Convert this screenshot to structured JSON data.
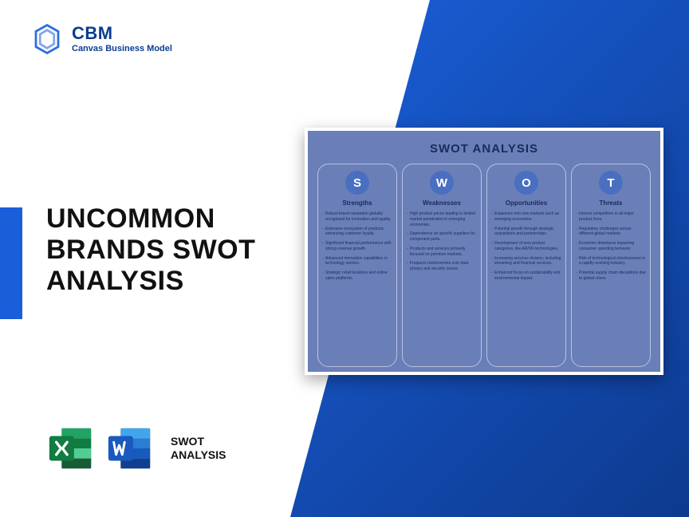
{
  "logo": {
    "title": "CBM",
    "subtitle": "Canvas Business Model",
    "icon_color": "#1a5fd9"
  },
  "accent_color": "#1a5fd9",
  "main_title": "UNCOMMON BRANDS SWOT ANALYSIS",
  "bottom": {
    "label_line1": "SWOT",
    "label_line2": "ANALYSIS",
    "excel_color_dark": "#107c41",
    "excel_color_light": "#21a366",
    "word_color_dark": "#185abd",
    "word_color_light": "#2b7cd3"
  },
  "swot": {
    "title": "SWOT ANALYSIS",
    "card_bg": "#6a7fb8",
    "circle_bg": "#4a6fc0",
    "text_color": "#1a2a5c",
    "columns": [
      {
        "letter": "S",
        "heading": "Strengths",
        "items": [
          "Robust brand reputation globally recognized for innovation and quality.",
          "Extensive ecosystem of products enhancing customer loyalty.",
          "Significant financial performance with strong revenue growth.",
          "Advanced innovation capabilities in technology sectors.",
          "Strategic retail locations and online sales platforms."
        ]
      },
      {
        "letter": "W",
        "heading": "Weaknesses",
        "items": [
          "High product prices leading to limited market penetration in emerging economies.",
          "Dependence on specific suppliers for component parts.",
          "Products and services primarily focused on premium markets.",
          "Frequent controversies over data privacy and security issues."
        ]
      },
      {
        "letter": "O",
        "heading": "Opportunities",
        "items": [
          "Expansion into new markets such as emerging economies.",
          "Potential growth through strategic acquisitions and partnerships.",
          "Development of new product categories, like AR/VR technologies.",
          "Increasing services division, including streaming and financial services.",
          "Enhanced focus on sustainability and environmental impact."
        ]
      },
      {
        "letter": "T",
        "heading": "Threats",
        "items": [
          "Intense competition in all major product lines.",
          "Regulatory challenges across different global markets.",
          "Economic downturns impacting consumer spending behavior.",
          "Risk of technological obsolescence in a rapidly evolving industry.",
          "Potential supply chain disruptions due to global crises."
        ]
      }
    ]
  }
}
